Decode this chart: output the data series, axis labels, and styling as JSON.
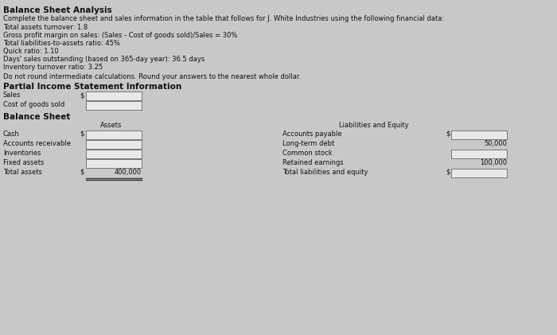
{
  "title": "Balance Sheet Analysis",
  "intro": "Complete the balance sheet and sales information in the table that follows for J. White Industries using the following financial data:",
  "bullet_lines": [
    "Total assets turnover: 1.8",
    "Gross profit margin on sales: (Sales - Cost of goods sold)/Sales = 30%",
    "Total liabilities-to-assets ratio: 45%",
    "Quick ratio: 1.10",
    "Days' sales outstanding (based on 365-day year): 36.5 days",
    "Inventory turnover ratio: 3.25"
  ],
  "note": "Do not round intermediate calculations. Round your answers to the nearest whole dollar.",
  "section1_title": "Partial Income Statement Information",
  "section2_title": "Balance Sheet",
  "assets_header": "Assets",
  "liabilities_header": "Liabilities and Equity",
  "asset_rows": [
    {
      "label": "Cash",
      "show_dollar": true,
      "has_box": true,
      "value": null
    },
    {
      "label": "Accounts receivable",
      "show_dollar": false,
      "has_box": true,
      "value": null
    },
    {
      "label": "Inventories",
      "show_dollar": false,
      "has_box": true,
      "value": null
    },
    {
      "label": "Fixed assets",
      "show_dollar": false,
      "has_box": true,
      "value": null
    },
    {
      "label": "Total assets",
      "show_dollar": true,
      "has_box": false,
      "value": "400,000",
      "underline": true
    }
  ],
  "liability_rows": [
    {
      "label": "Accounts payable",
      "show_dollar": true,
      "has_box": true,
      "value": null
    },
    {
      "label": "Long-term debt",
      "show_dollar": false,
      "has_box": false,
      "value": "50,000"
    },
    {
      "label": "Common stock",
      "show_dollar": false,
      "has_box": true,
      "value": null
    },
    {
      "label": "Retained earnings",
      "show_dollar": false,
      "has_box": false,
      "value": "100,000"
    },
    {
      "label": "Total liabilities and equity",
      "show_dollar": true,
      "has_box": true,
      "value": null,
      "underline": true
    }
  ],
  "bg_color": "#c8c8c8",
  "box_color": "#e8e8e8",
  "text_color": "#111111",
  "fs_title": 7.5,
  "fs_body": 6.5,
  "fs_small": 6.0
}
